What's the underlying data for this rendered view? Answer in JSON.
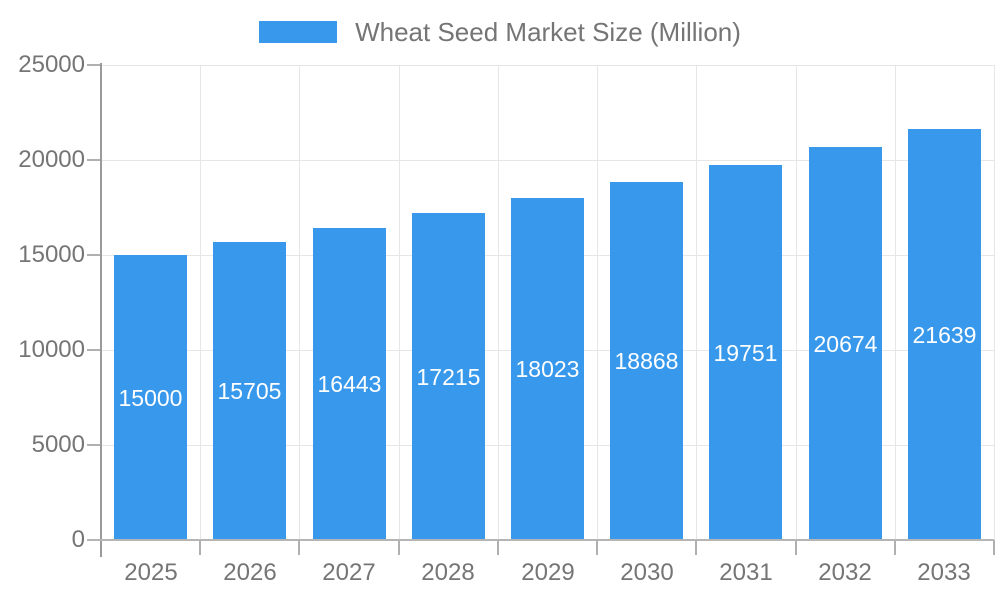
{
  "chart_data": {
    "type": "bar",
    "title": "Wheat Seed Market Size (Million)",
    "categories": [
      "2025",
      "2026",
      "2027",
      "2028",
      "2029",
      "2030",
      "2031",
      "2032",
      "2033"
    ],
    "series": [
      {
        "name": "Wheat Seed Market Size (Million)",
        "values": [
          15000,
          15705,
          16443,
          17215,
          18023,
          18868,
          19751,
          20674,
          21639
        ]
      }
    ],
    "value_labels": [
      "15000",
      "15705",
      "16443",
      "17215",
      "18023",
      "18868",
      "19751",
      "20674",
      "21639"
    ],
    "xlabel": "",
    "ylabel": "",
    "ylim": [
      0,
      25000
    ],
    "yticks": [
      0,
      5000,
      10000,
      15000,
      20000,
      25000
    ],
    "ytick_labels": [
      "0",
      "5000",
      "10000",
      "15000",
      "20000",
      "25000"
    ],
    "grid": "on",
    "legend_position": "top-center",
    "value_label_position": "inside-center"
  },
  "colors": {
    "bar": "#3898ec",
    "legend_swatch": "#3898ec",
    "axis_text": "#757575",
    "legend_text": "#757575",
    "grid": "#e6e6e6",
    "y_axis_line": "#9a9a9a",
    "baseline": "#b5b5b5",
    "tick": "#b0b0b0",
    "value_label": "#ffffff",
    "background": "#ffffff"
  }
}
